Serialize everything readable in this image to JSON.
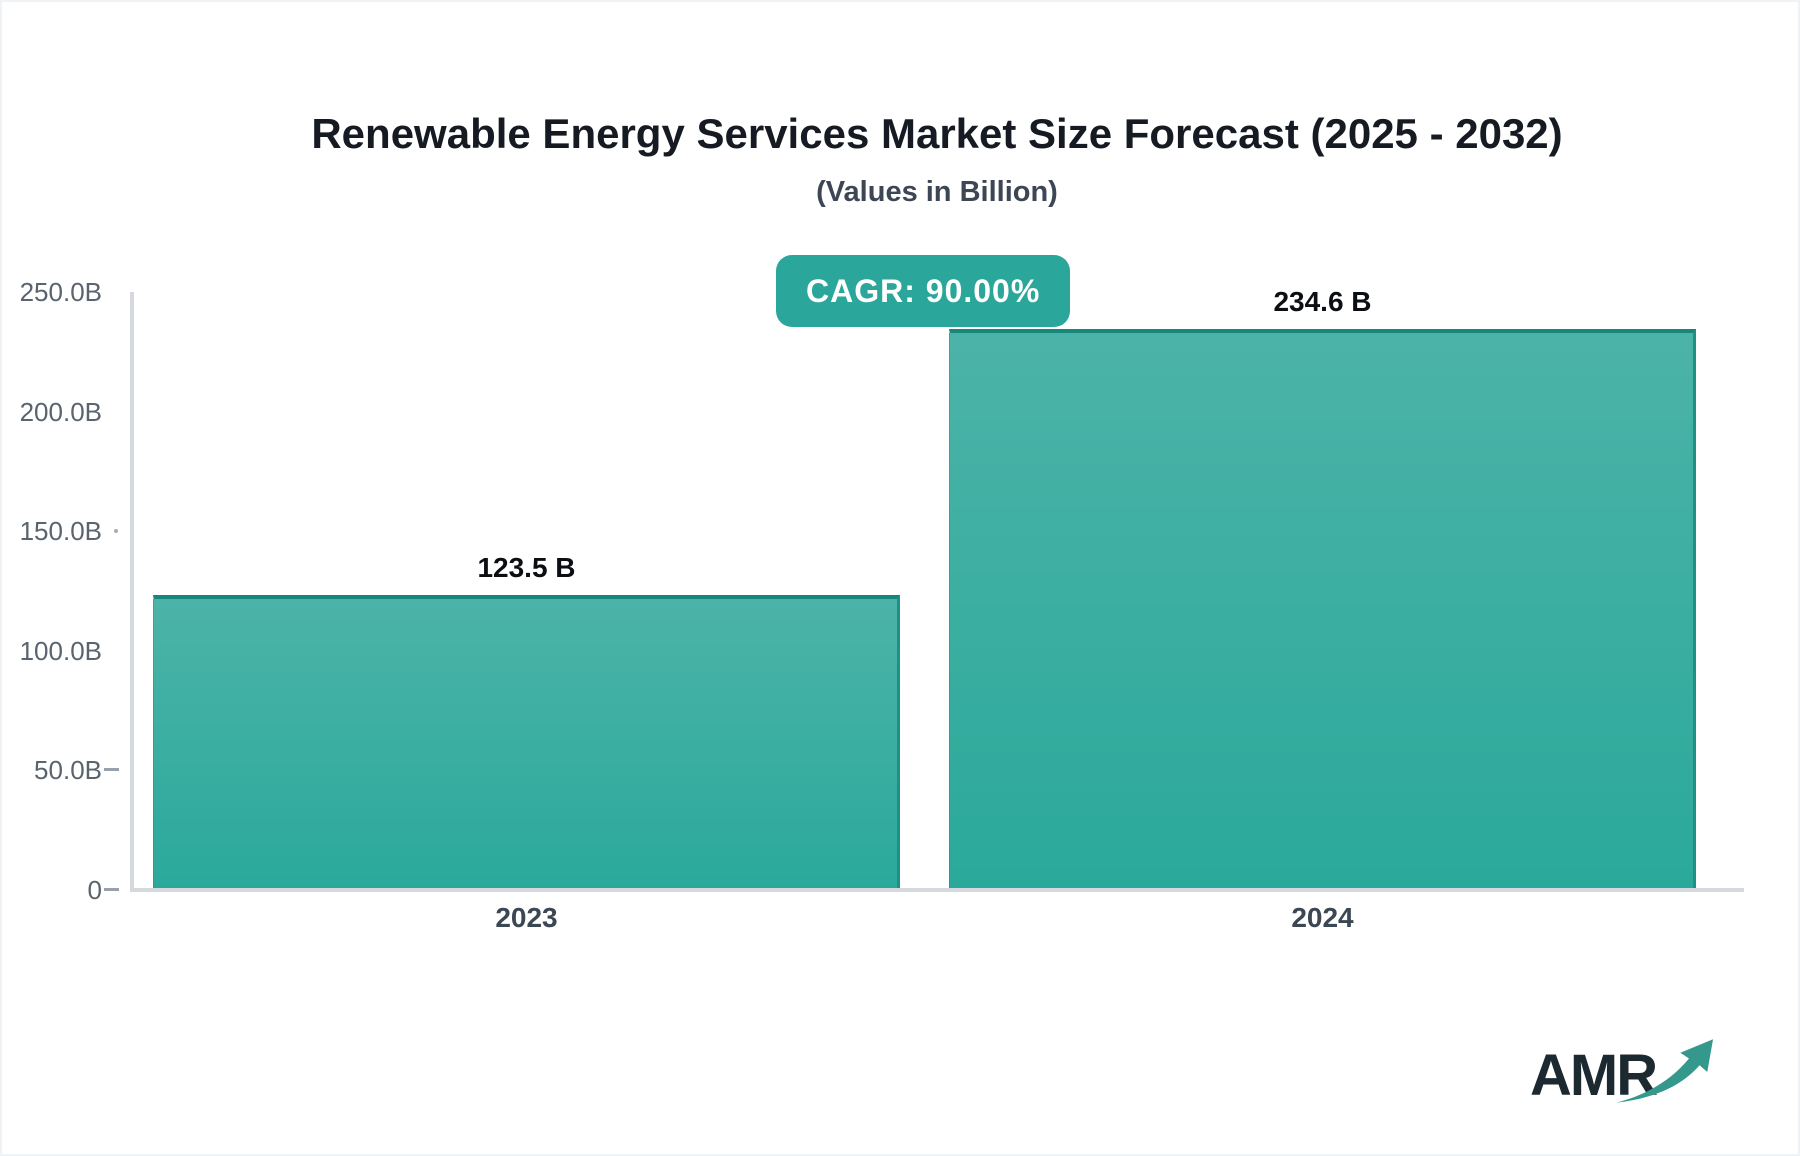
{
  "header": {
    "title": "Renewable Energy Services Market Size Forecast (2025 - 2032)",
    "subtitle": "(Values in Billion)"
  },
  "badge": {
    "label": "CAGR: 90.00%"
  },
  "logo": {
    "text": "AMR"
  },
  "colors": {
    "badge_bg": "#2aa79a",
    "bar_gradient_top": "#4cb3a8",
    "bar_gradient_bottom": "#2aa99b",
    "bar_border": "#17867b",
    "axis_line": "#d5d9de",
    "y_label": "#5a646e",
    "x_label": "#3c4754",
    "logo_arrow": "#35988d"
  },
  "chart_data": {
    "type": "bar",
    "categories": [
      "2023",
      "2024"
    ],
    "values": [
      123.5,
      234.6
    ],
    "value_labels": [
      "123.5 B",
      "234.6 B"
    ],
    "title": "Renewable Energy Services Market Size Forecast (2025 - 2032)",
    "subtitle": "(Values in Billion)",
    "cagr": "90.00%",
    "xlabel": "",
    "ylabel": "",
    "ylim": [
      0,
      250
    ],
    "yticks": [
      {
        "label": "250.0B",
        "value": 250
      },
      {
        "label": "200.0B",
        "value": 200
      },
      {
        "label": "150.0B",
        "value": 150,
        "tick": "dot"
      },
      {
        "label": "100.0B",
        "value": 100
      },
      {
        "label": "50.0B",
        "value": 50,
        "tick": "dash"
      },
      {
        "label": "0",
        "value": 0,
        "tick": "dash"
      }
    ],
    "grid": false,
    "legend": false
  }
}
